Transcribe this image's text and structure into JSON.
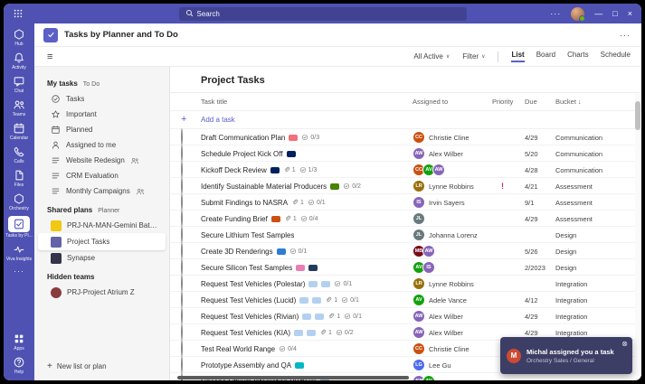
{
  "titlebar": {
    "search_placeholder": "Search",
    "more": "···"
  },
  "rail": {
    "items": [
      {
        "id": "hub",
        "icon": "hexagon",
        "label": "Hub",
        "selected": false
      },
      {
        "id": "activity",
        "icon": "bell",
        "label": "Activity",
        "selected": false
      },
      {
        "id": "chat",
        "icon": "chat",
        "label": "Chat",
        "selected": false
      },
      {
        "id": "teams",
        "icon": "people",
        "label": "Teams",
        "selected": false
      },
      {
        "id": "calendar",
        "icon": "calendar",
        "label": "Calendar",
        "selected": false
      },
      {
        "id": "calls",
        "icon": "phone",
        "label": "Calls",
        "selected": false
      },
      {
        "id": "files",
        "icon": "file",
        "label": "Files",
        "selected": false
      },
      {
        "id": "orchestry",
        "icon": "hexagon",
        "label": "Orchestry",
        "selected": false
      },
      {
        "id": "tasks",
        "icon": "tasks",
        "label": "Tasks by Pl...",
        "selected": true
      },
      {
        "id": "viva-insights",
        "icon": "pulse",
        "label": "Viva Insights",
        "selected": false
      },
      {
        "id": "more",
        "icon": "dots",
        "label": "",
        "selected": false
      }
    ],
    "bottom_items": [
      {
        "id": "apps",
        "icon": "apps",
        "label": "Apps"
      },
      {
        "id": "help",
        "icon": "help",
        "label": "Help"
      }
    ]
  },
  "app_header": {
    "title": "Tasks by Planner and To Do",
    "more": "···"
  },
  "toolbar": {
    "dropdowns": [
      {
        "label": "All Active"
      },
      {
        "label": "Filter"
      }
    ],
    "views": [
      {
        "label": "List",
        "selected": true
      },
      {
        "label": "Board",
        "selected": false
      },
      {
        "label": "Charts",
        "selected": false
      },
      {
        "label": "Schedule",
        "selected": false
      }
    ]
  },
  "sidebar": {
    "sections": [
      {
        "title": "My tasks",
        "subtitle": "To Do",
        "items": [
          {
            "icon": "check-circle",
            "label": "Tasks",
            "shared": false,
            "selected": false
          },
          {
            "icon": "star",
            "label": "Important",
            "shared": false,
            "selected": false
          },
          {
            "icon": "calendar-sm",
            "label": "Planned",
            "shared": false,
            "selected": false
          },
          {
            "icon": "person",
            "label": "Assigned to me",
            "shared": false,
            "selected": false
          },
          {
            "icon": "list",
            "label": "Website Redesign",
            "shared": true,
            "selected": false
          },
          {
            "icon": "list",
            "label": "CRM Evaluation",
            "shared": false,
            "selected": false
          },
          {
            "icon": "list",
            "label": "Monthly Campaigns",
            "shared": true,
            "selected": false
          }
        ]
      },
      {
        "title": "Shared plans",
        "subtitle": "Planner",
        "items": [
          {
            "icon": "plan-yellow",
            "label": "PRJ-NA-MAN-Gemini Battery",
            "shared": false,
            "selected": false
          },
          {
            "icon": "plan-purple",
            "label": "Project Tasks",
            "shared": false,
            "selected": true
          },
          {
            "icon": "plan-dark",
            "label": "Synapse",
            "shared": false,
            "selected": false
          }
        ]
      },
      {
        "title": "Hidden teams",
        "subtitle": "",
        "items": [
          {
            "icon": "team-maroon",
            "label": "PRJ-Project Atrium Z",
            "shared": false,
            "selected": false
          }
        ]
      }
    ],
    "new_list_label": "New list or plan"
  },
  "main": {
    "title": "Project Tasks",
    "table": {
      "columns": [
        {
          "label": "Task title",
          "sorted": false
        },
        {
          "label": "Assigned to",
          "sorted": false
        },
        {
          "label": "Priority",
          "sorted": false
        },
        {
          "label": "Due",
          "sorted": false
        },
        {
          "label": "Bucket",
          "sorted": true
        }
      ],
      "add_task_label": "Add a task",
      "rows": [
        {
          "title": "Draft Communication Plan",
          "chips": [
            "#F1707B"
          ],
          "attachments": "",
          "checklist": "0/3",
          "assignees": [
            {
              "initials": "CC",
              "color": "#CA5010"
            }
          ],
          "assigned_name": "Christie Cline",
          "priority": false,
          "due": "4/29",
          "bucket": "Communication"
        },
        {
          "title": "Schedule Project Kick Off",
          "chips": [
            "#002060"
          ],
          "attachments": "",
          "checklist": "",
          "assignees": [
            {
              "initials": "AW",
              "color": "#8764B8"
            }
          ],
          "assigned_name": "Alex Wilber",
          "priority": false,
          "due": "5/20",
          "bucket": "Communication"
        },
        {
          "title": "Kickoff Deck Review",
          "chips": [
            "#002060"
          ],
          "attachments": "1",
          "checklist": "1/3",
          "assignees": [
            {
              "initials": "CC",
              "color": "#CA5010"
            },
            {
              "initials": "AV",
              "color": "#13A10E"
            },
            {
              "initials": "AW",
              "color": "#8764B8"
            }
          ],
          "assigned_name": "",
          "priority": false,
          "due": "4/28",
          "bucket": "Communication"
        },
        {
          "title": "Identify Sustainable Material Producers",
          "chips": [
            "#498205"
          ],
          "attachments": "",
          "checklist": "0/2",
          "assignees": [
            {
              "initials": "LR",
              "color": "#986F0B"
            }
          ],
          "assigned_name": "Lynne Robbins",
          "priority": true,
          "due": "4/21",
          "bucket": "Assessment"
        },
        {
          "title": "Submit Findings to NASRA",
          "chips": [],
          "attachments": "1",
          "checklist": "0/1",
          "assignees": [
            {
              "initials": "IS",
              "color": "#8764B8"
            }
          ],
          "assigned_name": "Irvin Sayers",
          "priority": false,
          "due": "9/1",
          "bucket": "Assessment"
        },
        {
          "title": "Create Funding Brief",
          "chips": [
            "#CA5010"
          ],
          "attachments": "1",
          "checklist": "0/4",
          "assignees": [
            {
              "initials": "JL",
              "color": "#69797E"
            }
          ],
          "assigned_name": "",
          "priority": false,
          "due": "4/29",
          "bucket": "Assessment"
        },
        {
          "title": "Secure Lithium Test Samples",
          "chips": [],
          "attachments": "",
          "checklist": "",
          "assignees": [
            {
              "initials": "JL",
              "color": "#69797E"
            }
          ],
          "assigned_name": "Johanna Lorenz",
          "priority": false,
          "due": "",
          "bucket": "Design"
        },
        {
          "title": "Create 3D Renderings",
          "chips": [
            "#2D7DD2"
          ],
          "attachments": "",
          "checklist": "0/1",
          "assignees": [
            {
              "initials": "MB",
              "color": "#750B1C"
            },
            {
              "initials": "AW",
              "color": "#8764B8"
            }
          ],
          "assigned_name": "",
          "priority": false,
          "due": "5/26",
          "bucket": "Design"
        },
        {
          "title": "Secure Silicon Test Samples",
          "chips": [
            "#E77FB3",
            "#243A5E"
          ],
          "attachments": "",
          "checklist": "",
          "assignees": [
            {
              "initials": "AV",
              "color": "#13A10E"
            },
            {
              "initials": "IS",
              "color": "#8764B8"
            }
          ],
          "assigned_name": "",
          "priority": false,
          "due": "2/2023",
          "bucket": "Design"
        },
        {
          "title": "Request Test Vehicles (Polestar)",
          "chips": [
            "#B4D0F0",
            "#B4D0F0"
          ],
          "attachments": "",
          "checklist": "0/1",
          "assignees": [
            {
              "initials": "LR",
              "color": "#986F0B"
            }
          ],
          "assigned_name": "Lynne Robbins",
          "priority": false,
          "due": "",
          "bucket": "Integration"
        },
        {
          "title": "Request Test Vehicles (Lucid)",
          "chips": [
            "#B4D0F0",
            "#B4D0F0"
          ],
          "attachments": "1",
          "checklist": "0/1",
          "assignees": [
            {
              "initials": "AV",
              "color": "#13A10E"
            }
          ],
          "assigned_name": "Adele Vance",
          "priority": false,
          "due": "4/12",
          "bucket": "Integration"
        },
        {
          "title": "Request Test Vehicles (Rivian)",
          "chips": [
            "#B4D0F0",
            "#B4D0F0"
          ],
          "attachments": "1",
          "checklist": "0/1",
          "assignees": [
            {
              "initials": "AW",
              "color": "#8764B8"
            }
          ],
          "assigned_name": "Alex Wilber",
          "priority": false,
          "due": "4/29",
          "bucket": "Integration"
        },
        {
          "title": "Request Test Vehicles (KIA)",
          "chips": [
            "#B4D0F0",
            "#B4D0F0"
          ],
          "attachments": "1",
          "checklist": "0/2",
          "assignees": [
            {
              "initials": "AW",
              "color": "#8764B8"
            }
          ],
          "assigned_name": "Alex Wilber",
          "priority": false,
          "due": "4/29",
          "bucket": "Integration"
        },
        {
          "title": "Test Real World Range",
          "chips": [],
          "attachments": "",
          "checklist": "0/4",
          "assignees": [
            {
              "initials": "CC",
              "color": "#CA5010"
            }
          ],
          "assigned_name": "Christie Cline",
          "priority": false,
          "due": "",
          "bucket": ""
        },
        {
          "title": "Prototype Assembly and QA",
          "chips": [
            "#00B7C3"
          ],
          "attachments": "",
          "checklist": "",
          "assignees": [
            {
              "initials": "LG",
              "color": "#4F6BED"
            }
          ],
          "assigned_name": "Lee Gu",
          "priority": true,
          "due": "",
          "bucket": ""
        },
        {
          "title": "Silicone Lithium Integration Platform",
          "chips": [
            "#9CC3E5"
          ],
          "attachments": "",
          "checklist": "",
          "assignees": [
            {
              "initials": "AW",
              "color": "#8764B8"
            },
            {
              "initials": "AV",
              "color": "#13A10E"
            }
          ],
          "assigned_name": "",
          "priority": false,
          "due": "",
          "bucket": ""
        }
      ]
    }
  },
  "toast": {
    "avatar_initial": "M",
    "title": "Michal assigned you a task",
    "subtitle": "Orchestry Sales / General"
  }
}
